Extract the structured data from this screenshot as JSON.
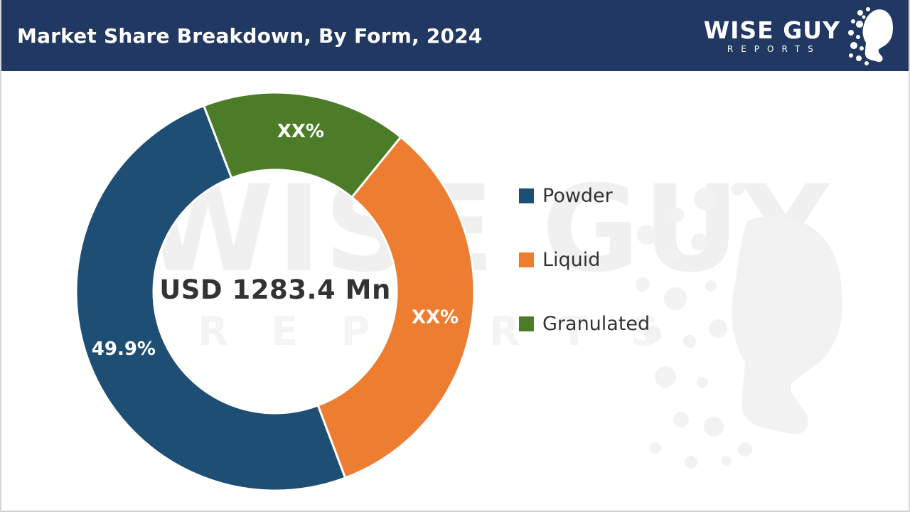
{
  "header": {
    "title": "Market Share Breakdown, By Form, 2024",
    "background_color": "#213862",
    "logo": {
      "line1": "WISE GUY",
      "line2": "REPORTS",
      "face_icon": "dotted-face-profile-icon"
    }
  },
  "chart_data": {
    "type": "pie",
    "subtype": "donut",
    "title": "Market Share Breakdown, By Form, 2024",
    "center_label": "USD 1283.4 Mn",
    "categories": [
      "Powder",
      "Liquid",
      "Granulated"
    ],
    "series": [
      {
        "name": "Powder",
        "value_pct": 49.9,
        "label_shown": "49.9%",
        "color": "#1F4E74"
      },
      {
        "name": "Liquid",
        "value_pct": 33.4,
        "label_shown": "XX%",
        "color": "#ED7D31"
      },
      {
        "name": "Granulated",
        "value_pct": 16.7,
        "label_shown": "XX%",
        "color": "#4C7C28"
      }
    ],
    "start_angle_deg": 111,
    "direction": "counterclockwise",
    "legend_position": "right",
    "slice_gap_color": "#ffffff"
  },
  "watermark": {
    "line1": "WISE GUY",
    "line2": "REPORTS",
    "face_icon": "dotted-face-profile-icon"
  }
}
